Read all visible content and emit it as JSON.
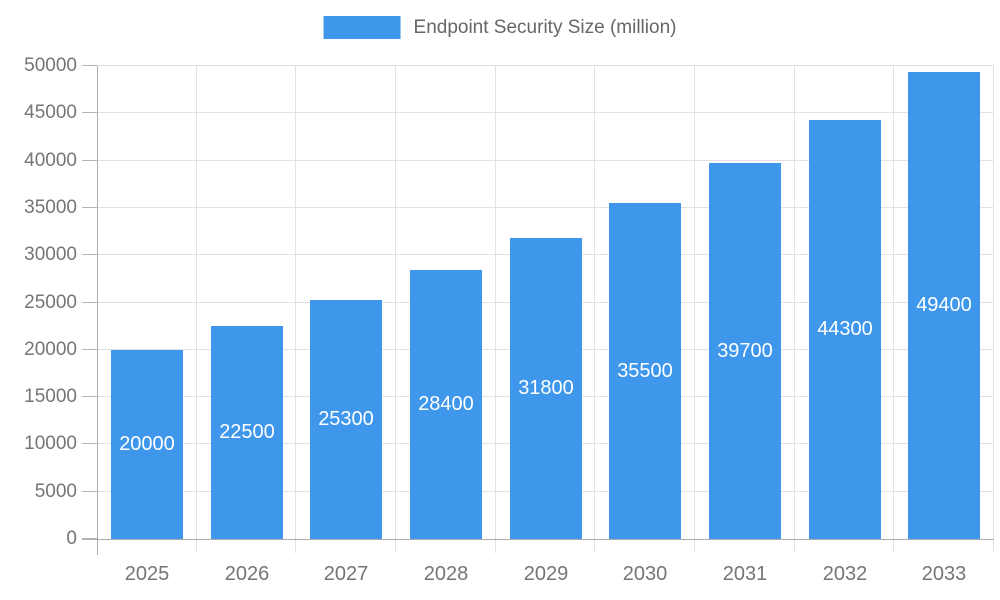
{
  "colors": {
    "bar": "#3E97EB",
    "grid": "#E2E2E2",
    "axis": "#ADADAD",
    "tick": "#B5B5B5",
    "tick_label": "#757575",
    "legend_text": "#666666",
    "bar_label": "#FFFFFF",
    "background": "#FFFFFF"
  },
  "chart_data": {
    "type": "bar",
    "categories": [
      "2025",
      "2026",
      "2027",
      "2028",
      "2029",
      "2030",
      "2031",
      "2032",
      "2033"
    ],
    "series": [
      {
        "name": "Endpoint Security Size (million)",
        "values": [
          20000,
          22500,
          25300,
          28400,
          31800,
          35500,
          39700,
          44300,
          49400
        ]
      }
    ],
    "data_labels": [
      20000,
      22500,
      25300,
      28400,
      31800,
      35500,
      39700,
      44300,
      49400
    ],
    "xlabel": "",
    "ylabel": "",
    "ylim": [
      0,
      50000
    ],
    "ytick_step": 5000,
    "yticks": [
      0,
      5000,
      10000,
      15000,
      20000,
      25000,
      30000,
      35000,
      40000,
      45000,
      50000
    ],
    "grid": true,
    "legend_position": "top",
    "data_label_position": "inside-center"
  }
}
